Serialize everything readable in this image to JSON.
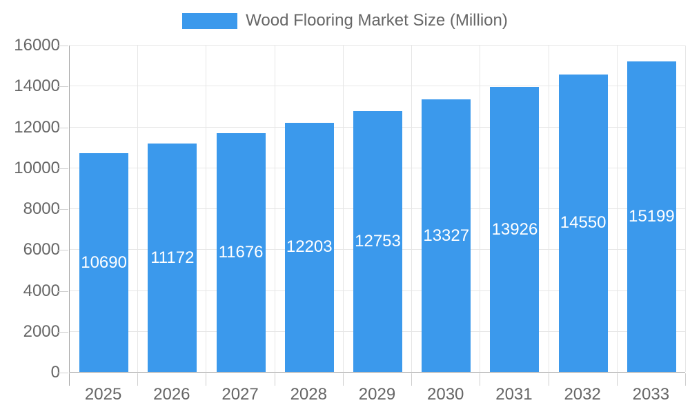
{
  "legend": {
    "label": "Wood Flooring Market Size (Million)"
  },
  "colors": {
    "bar": "#3B99EC",
    "grid": "#E6E6E6",
    "axis": "#A6A6A6",
    "tick": "#CFCFCF",
    "label_text": "#666666",
    "value_text": "#FFFFFF",
    "background": "#FFFFFF"
  },
  "chart_data": {
    "type": "bar",
    "title": "",
    "xlabel": "",
    "ylabel": "",
    "categories": [
      "2025",
      "2026",
      "2027",
      "2028",
      "2029",
      "2030",
      "2031",
      "2032",
      "2033"
    ],
    "series": [
      {
        "name": "Wood Flooring Market Size (Million)",
        "values": [
          10690,
          11172,
          11676,
          12203,
          12753,
          13327,
          13926,
          14550,
          15199
        ]
      }
    ],
    "ylim": [
      0,
      16000
    ],
    "ytick_step": 2000,
    "yticks": [
      0,
      2000,
      4000,
      6000,
      8000,
      10000,
      12000,
      14000,
      16000
    ],
    "grid": true,
    "legend_position": "top",
    "value_labels": "inside-center"
  }
}
